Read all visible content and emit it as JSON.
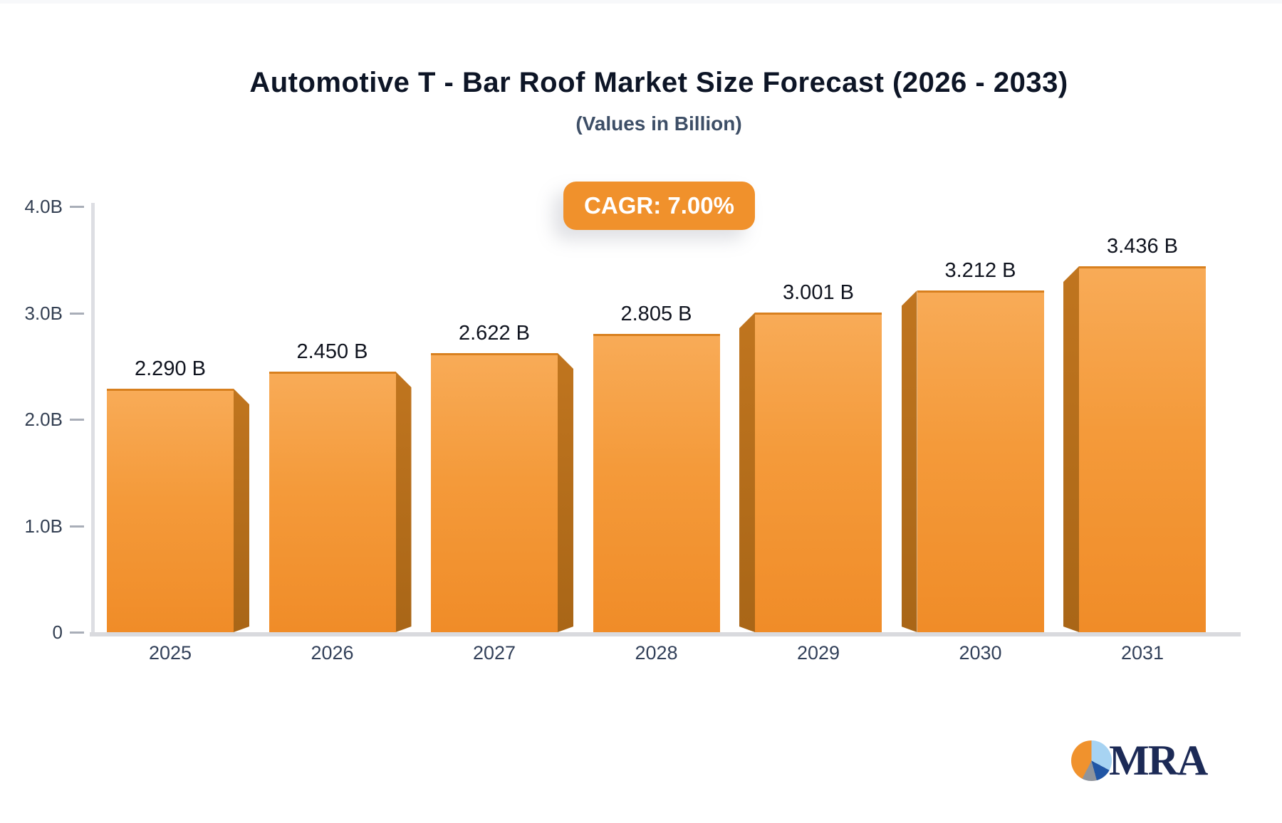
{
  "chart_data": {
    "type": "bar",
    "title": "Automotive T - Bar Roof Market Size Forecast (2026 - 2033)",
    "subtitle": "(Values in Billion)",
    "annotation": "CAGR: 7.00%",
    "categories": [
      "2025",
      "2026",
      "2027",
      "2028",
      "2029",
      "2030",
      "2031"
    ],
    "series": [
      {
        "name": "Market Size (Billion)",
        "values": [
          2.29,
          2.45,
          2.622,
          2.805,
          3.001,
          3.212,
          3.436
        ],
        "labels": [
          "2.290 B",
          "2.450 B",
          "2.622 B",
          "2.805 B",
          "3.001 B",
          "3.212 B",
          "3.436 B"
        ]
      }
    ],
    "xlabel": "",
    "ylabel": "",
    "ylim": [
      0,
      4
    ],
    "yticks": [
      {
        "value": 0,
        "label": "0"
      },
      {
        "value": 1.0,
        "label": "1.0B"
      },
      {
        "value": 2.0,
        "label": "2.0B"
      },
      {
        "value": 3.0,
        "label": "3.0B"
      },
      {
        "value": 4.0,
        "label": "4.0B"
      }
    ],
    "grid": false,
    "legend": false,
    "colors": {
      "bar_top": "#f8ab57",
      "bar_bottom": "#f08c28",
      "bar_side": "#b06c1c",
      "badge": "#f0912c",
      "title_text": "#0d1526",
      "subtitle_text": "#3d4e66"
    }
  },
  "logo": {
    "text": "MRA",
    "icon": "pie-chart-logo"
  }
}
